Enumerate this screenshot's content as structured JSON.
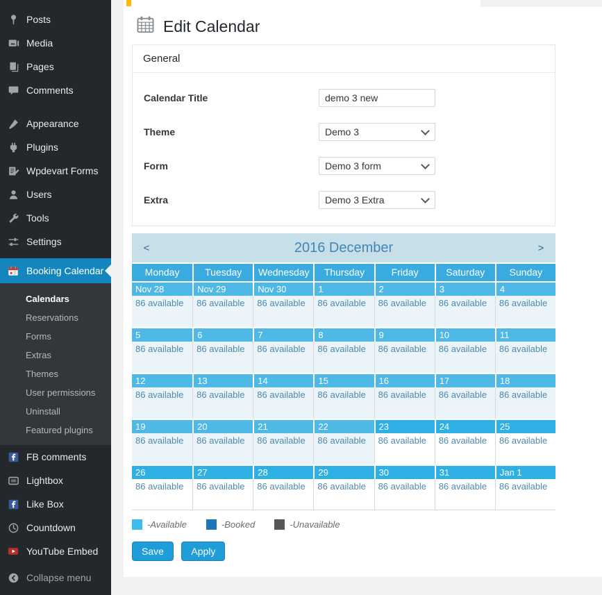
{
  "colors": {
    "sidebar_bg": "#23282d",
    "submenu_bg": "#32373c",
    "active_item_bg": "#1586bd",
    "notice_accent": "#ffb900",
    "calendar_header_bg": "#c6dfe9",
    "calendar_title_color": "#4585b4",
    "day_header_bg": "#3aabdf",
    "date_strip_past": "#4eb8e6",
    "date_strip_future": "#2fb0e4",
    "cell_past_bg": "#eaf4f9",
    "cell_future_bg": "#ffffff",
    "cell_text": "#4e89ad",
    "button_bg": "#1e9dd9"
  },
  "sidebar": {
    "top_items": [
      {
        "label": "Posts",
        "icon": "pin-icon"
      },
      {
        "label": "Media",
        "icon": "media-icon"
      },
      {
        "label": "Pages",
        "icon": "pages-icon"
      },
      {
        "label": "Comments",
        "icon": "comment-icon"
      },
      {
        "label": "Appearance",
        "icon": "brush-icon",
        "group_start": true
      },
      {
        "label": "Plugins",
        "icon": "plugin-icon"
      },
      {
        "label": "Wpdevart Forms",
        "icon": "form-icon"
      },
      {
        "label": "Users",
        "icon": "user-icon"
      },
      {
        "label": "Tools",
        "icon": "wrench-icon"
      },
      {
        "label": "Settings",
        "icon": "sliders-icon"
      }
    ],
    "booking": {
      "label": "Booking Calendar",
      "icon": "booking-calendar-icon"
    },
    "submenu_items": [
      {
        "label": "Calendars",
        "active": true
      },
      {
        "label": "Reservations",
        "active": false
      },
      {
        "label": "Forms",
        "active": false
      },
      {
        "label": "Extras",
        "active": false
      },
      {
        "label": "Themes",
        "active": false
      },
      {
        "label": "User permissions",
        "active": false
      },
      {
        "label": "Uninstall",
        "active": false
      },
      {
        "label": "Featured plugins",
        "active": false
      }
    ],
    "plugin_items": [
      {
        "label": "FB comments",
        "icon": "facebook-icon"
      },
      {
        "label": "Lightbox",
        "icon": "lightbox-icon"
      },
      {
        "label": "Like Box",
        "icon": "facebook-icon"
      },
      {
        "label": "Countdown",
        "icon": "clock-icon"
      },
      {
        "label": "YouTube Embed",
        "icon": "youtube-icon"
      }
    ],
    "collapse": {
      "label": "Collapse menu",
      "icon": "collapse-icon"
    }
  },
  "header": {
    "title": "Edit Calendar",
    "icon": "calendar-icon"
  },
  "general": {
    "title": "General",
    "fields": [
      {
        "label": "Calendar Title",
        "type": "text",
        "value": "demo 3 new"
      },
      {
        "label": "Theme",
        "type": "select",
        "value": "Demo 3"
      },
      {
        "label": "Form",
        "type": "select",
        "value": "Demo 3 form"
      },
      {
        "label": "Extra",
        "type": "select",
        "value": "Demo 3 Extra"
      }
    ]
  },
  "calendar": {
    "prev_label": "<",
    "title": "2016 December",
    "next_label": ">",
    "day_headers": [
      "Monday",
      "Tuesday",
      "Wednesday",
      "Thursday",
      "Friday",
      "Saturday",
      "Sunday"
    ],
    "weeks": [
      {
        "cells": [
          {
            "date": "Nov 28",
            "avail": "86 available",
            "shaded": true
          },
          {
            "date": "Nov 29",
            "avail": "86 available",
            "shaded": true
          },
          {
            "date": "Nov 30",
            "avail": "86 available",
            "shaded": true
          },
          {
            "date": "1",
            "avail": "86 available",
            "shaded": true
          },
          {
            "date": "2",
            "avail": "86 available",
            "shaded": true
          },
          {
            "date": "3",
            "avail": "86 available",
            "shaded": true
          },
          {
            "date": "4",
            "avail": "86 available",
            "shaded": true
          }
        ]
      },
      {
        "cells": [
          {
            "date": "5",
            "avail": "86 available",
            "shaded": true
          },
          {
            "date": "6",
            "avail": "86 available",
            "shaded": true
          },
          {
            "date": "7",
            "avail": "86 available",
            "shaded": true
          },
          {
            "date": "8",
            "avail": "86 available",
            "shaded": true
          },
          {
            "date": "9",
            "avail": "86 available",
            "shaded": true
          },
          {
            "date": "10",
            "avail": "86 available",
            "shaded": true
          },
          {
            "date": "11",
            "avail": "86 available",
            "shaded": true
          }
        ]
      },
      {
        "cells": [
          {
            "date": "12",
            "avail": "86 available",
            "shaded": true
          },
          {
            "date": "13",
            "avail": "86 available",
            "shaded": true
          },
          {
            "date": "14",
            "avail": "86 available",
            "shaded": true
          },
          {
            "date": "15",
            "avail": "86 available",
            "shaded": true
          },
          {
            "date": "16",
            "avail": "86 available",
            "shaded": true
          },
          {
            "date": "17",
            "avail": "86 available",
            "shaded": true
          },
          {
            "date": "18",
            "avail": "86 available",
            "shaded": true
          }
        ]
      },
      {
        "cells": [
          {
            "date": "19",
            "avail": "86 available",
            "shaded": true
          },
          {
            "date": "20",
            "avail": "86 available",
            "shaded": true
          },
          {
            "date": "21",
            "avail": "86 available",
            "shaded": true
          },
          {
            "date": "22",
            "avail": "86 available",
            "shaded": true
          },
          {
            "date": "23",
            "avail": "86 available",
            "shaded": false
          },
          {
            "date": "24",
            "avail": "86 available",
            "shaded": false
          },
          {
            "date": "25",
            "avail": "86 available",
            "shaded": false
          }
        ]
      },
      {
        "cells": [
          {
            "date": "26",
            "avail": "86 available",
            "shaded": false
          },
          {
            "date": "27",
            "avail": "86 available",
            "shaded": false
          },
          {
            "date": "28",
            "avail": "86 available",
            "shaded": false
          },
          {
            "date": "29",
            "avail": "86 available",
            "shaded": false
          },
          {
            "date": "30",
            "avail": "86 available",
            "shaded": false
          },
          {
            "date": "31",
            "avail": "86 available",
            "shaded": false
          },
          {
            "date": "Jan 1",
            "avail": "86 available",
            "shaded": false
          }
        ]
      }
    ]
  },
  "legend": [
    {
      "label": "-Available",
      "color": "#3fbdea"
    },
    {
      "label": "-Booked",
      "color": "#1d76b5"
    },
    {
      "label": "-Unavailable",
      "color": "#54585a"
    }
  ],
  "actions": {
    "save": "Save",
    "apply": "Apply"
  }
}
